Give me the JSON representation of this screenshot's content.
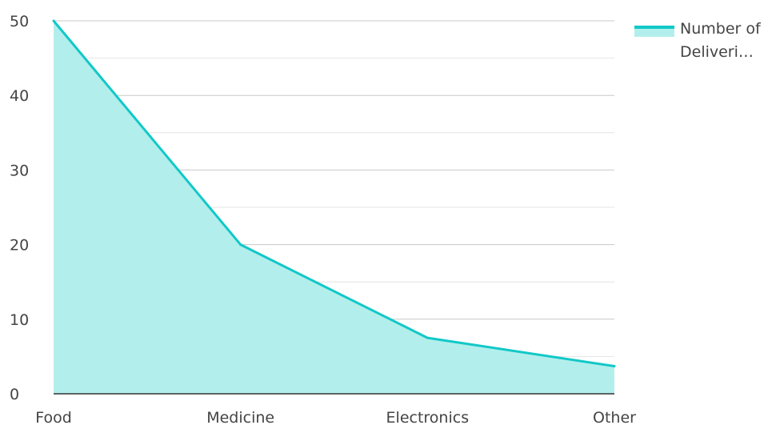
{
  "chart_data": {
    "type": "area",
    "categories": [
      "Food",
      "Medicine",
      "Electronics",
      "Other"
    ],
    "series": [
      {
        "name": "Number of Deliveri…",
        "values": [
          50,
          20,
          7.5,
          3.7
        ]
      }
    ],
    "ylim": [
      0,
      50
    ],
    "yticks": [
      "0",
      "10",
      "20",
      "30",
      "40",
      "50"
    ],
    "xlabel": "",
    "ylabel": "",
    "grid": true,
    "legend_position": "right",
    "colors": {
      "line": "#12c8c8",
      "fill": "#b2efec",
      "grid": "#d6d6d6",
      "axis": "#333333"
    }
  }
}
